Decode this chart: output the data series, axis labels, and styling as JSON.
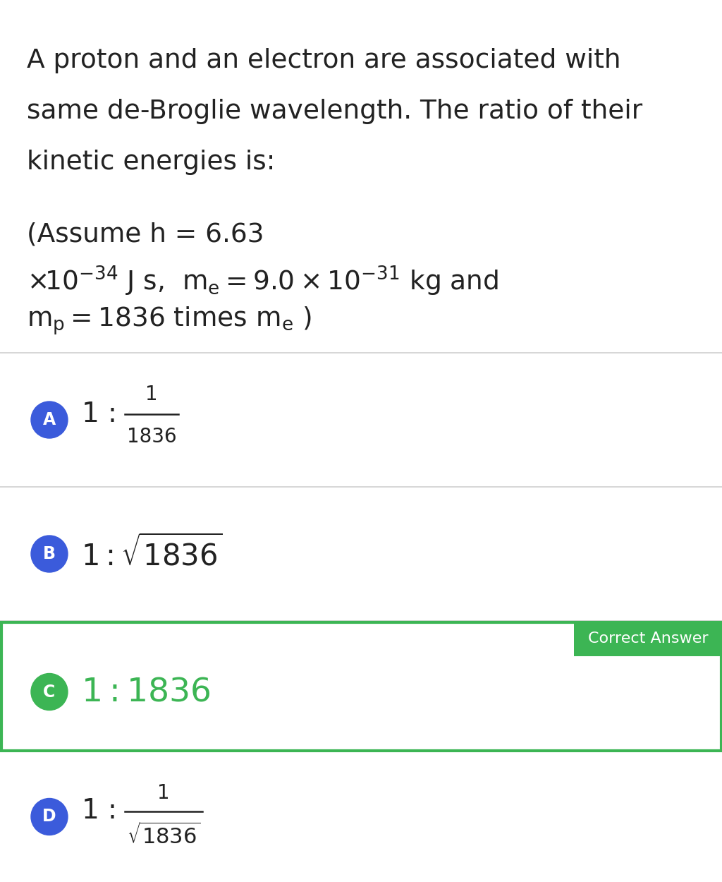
{
  "bg_color": "#f5f5f5",
  "question_section_bg": "#ffffff",
  "separator_color": "#d0d0d0",
  "option_bg_white": "#ffffff",
  "option_bg_gray": "#f5f5f5",
  "correct_border_color": "#3cb554",
  "correct_answer_badge_bg": "#3cb554",
  "correct_answer_badge_text": "Correct Answer",
  "correct_answer_badge_text_color": "#ffffff",
  "circle_color_blue": "#3b5bdb",
  "circle_color_green": "#3cb554",
  "text_color_black": "#222222",
  "text_color_green": "#3cb554",
  "question_text_line1": "A proton and an electron are associated with",
  "question_text_line2": "same de-Broglie wavelength. The ratio of their",
  "question_text_line3": "kinetic energies is:",
  "option_A_label": "A",
  "option_B_label": "B",
  "option_C_label": "C",
  "option_D_label": "D",
  "fig_width": 10.24,
  "fig_height": 12.5
}
